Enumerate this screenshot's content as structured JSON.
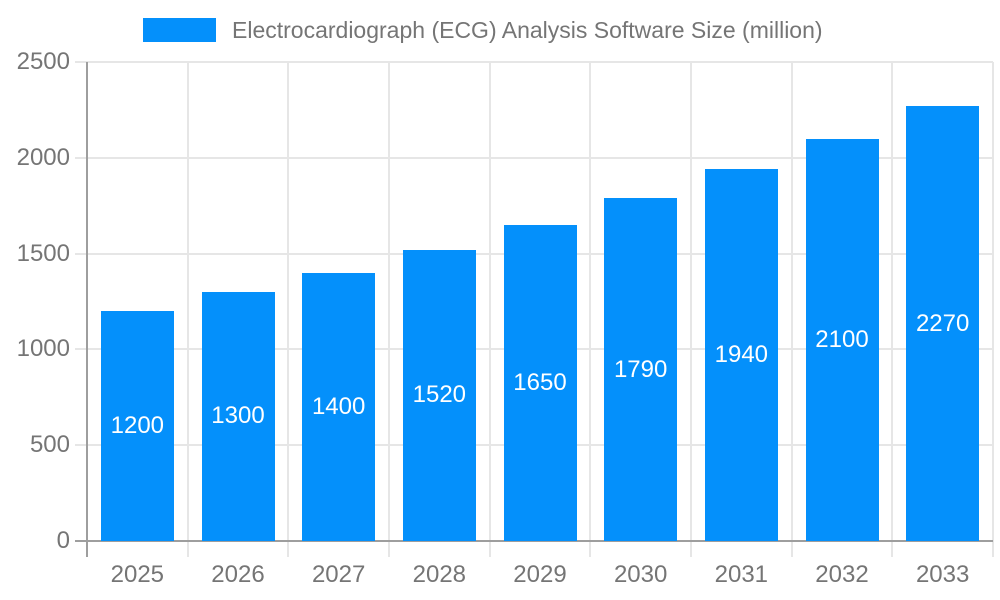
{
  "chart_data": {
    "type": "bar",
    "title": "Electrocardiograph (ECG) Analysis Software Size (million)",
    "xlabel": "",
    "ylabel": "",
    "categories": [
      "2025",
      "2026",
      "2027",
      "2028",
      "2029",
      "2030",
      "2031",
      "2032",
      "2033"
    ],
    "values": [
      1200,
      1300,
      1400,
      1520,
      1650,
      1790,
      1940,
      2100,
      2270
    ],
    "ylim": [
      0,
      2500
    ],
    "yticks": [
      0,
      500,
      1000,
      1500,
      2000,
      2500
    ],
    "ytick_labels": [
      "0",
      "500",
      "1000",
      "1500",
      "2000",
      "2500"
    ],
    "grid": "on",
    "legend_position": "top",
    "colors": {
      "bar": "#0490fb",
      "axis": "#9e9e9e",
      "grid": "#e6e6e6",
      "tick_text": "#757575",
      "value_text": "#ffffff",
      "background": "#ffffff"
    }
  }
}
